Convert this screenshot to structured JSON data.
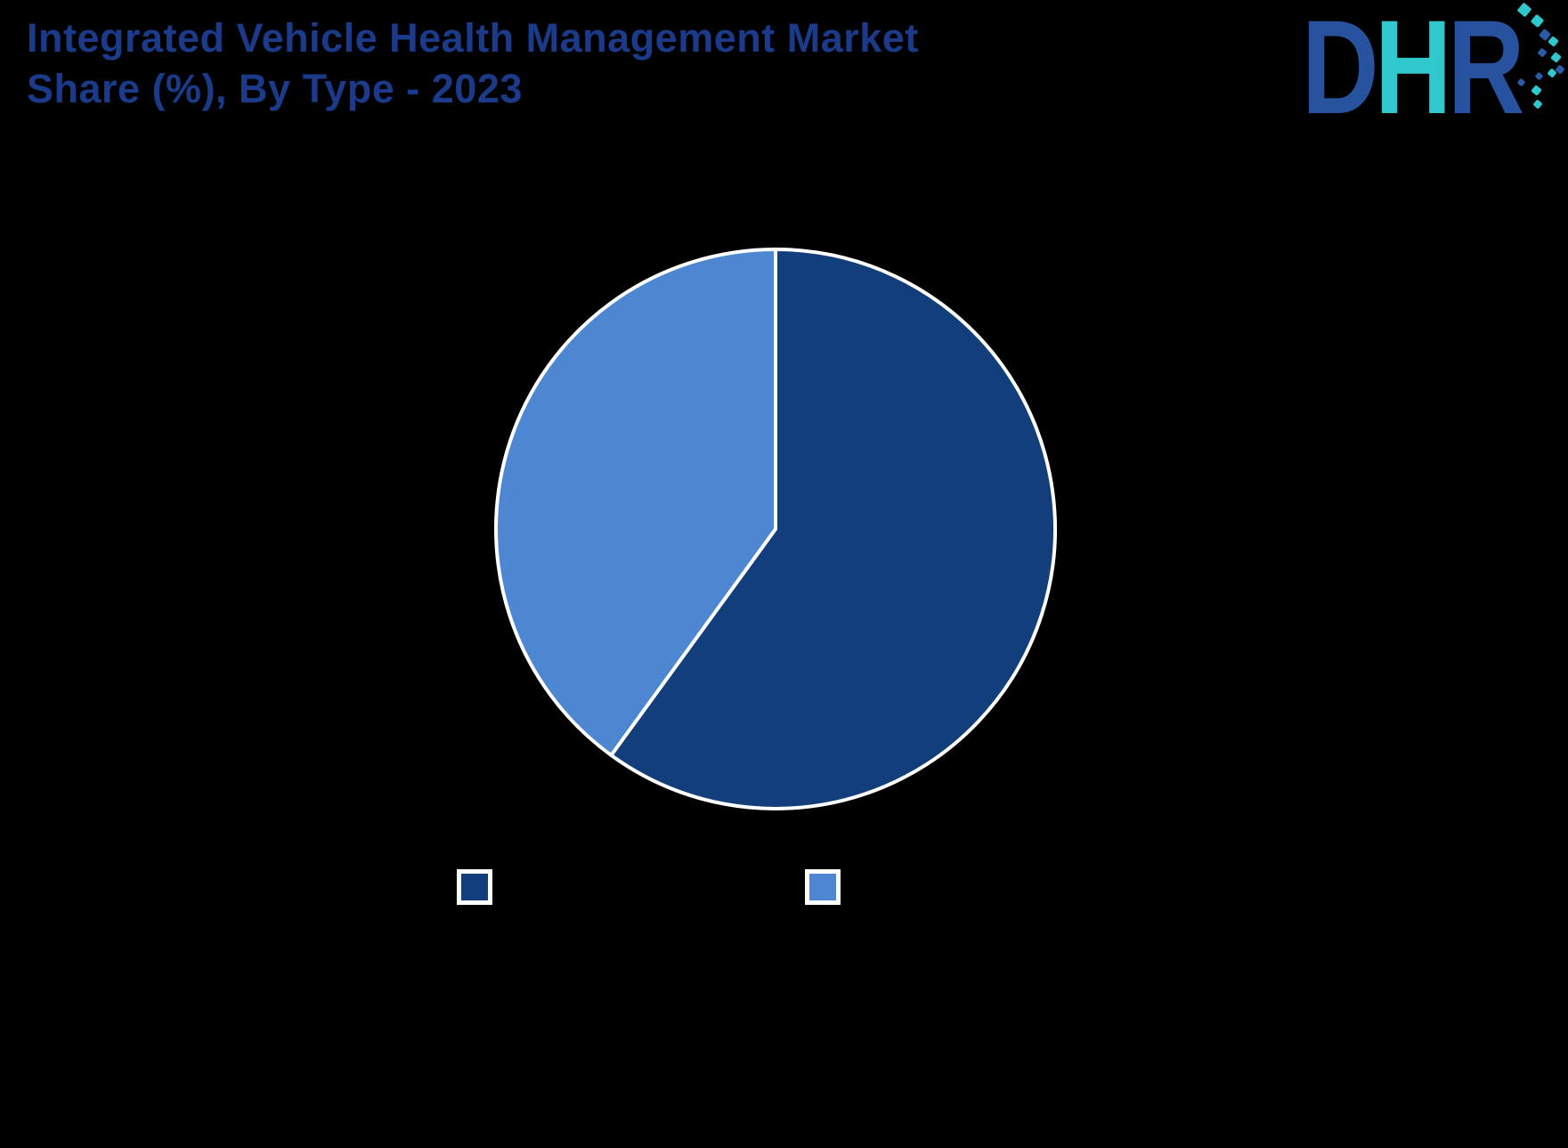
{
  "page": {
    "background": "#000000"
  },
  "header": {
    "title_line1": "Integrated Vehicle Health Management Market",
    "title_line2": "Share (%), By Type - 2023",
    "title_color": "#1B3B8A"
  },
  "logo": {
    "letters": [
      {
        "char": "D",
        "color": "#2652A0"
      },
      {
        "char": "H",
        "color": "#2FC8CE"
      },
      {
        "char": "R",
        "color": "#2652A0"
      }
    ],
    "dot_colors": {
      "teal": "#2FC8CE",
      "blue": "#2B5AA9"
    }
  },
  "chart_data": {
    "type": "pie",
    "title": "Integrated Vehicle Health Management Market Share (%), By Type - 2023",
    "start_angle_deg": 0,
    "direction": "clockwise",
    "legend_position": "bottom",
    "data_labels_visible": false,
    "outline_color": "#FFFFFF",
    "series": [
      {
        "label": "",
        "value": 60,
        "color": "#133E7C"
      },
      {
        "label": "",
        "value": 40,
        "color": "#4E87D1"
      }
    ]
  }
}
